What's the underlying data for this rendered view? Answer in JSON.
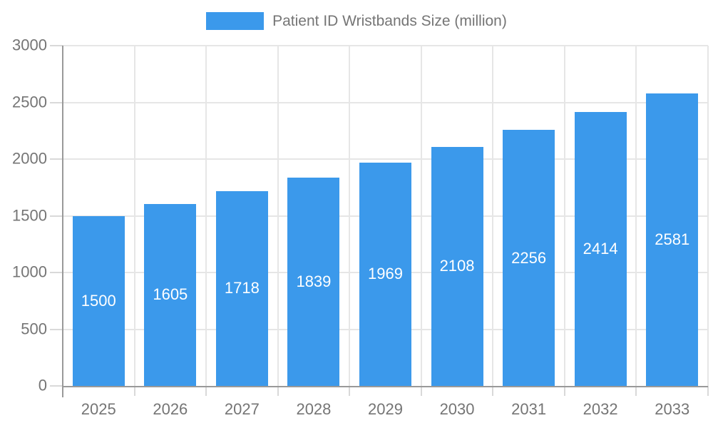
{
  "chart_data": {
    "type": "bar",
    "series_name": "Patient ID Wristbands Size (million)",
    "categories": [
      "2025",
      "2026",
      "2027",
      "2028",
      "2029",
      "2030",
      "2031",
      "2032",
      "2033"
    ],
    "values": [
      1500,
      1605,
      1718,
      1839,
      1969,
      2108,
      2256,
      2414,
      2581
    ],
    "ylim": [
      0,
      3000
    ],
    "y_ticks": [
      0,
      500,
      1000,
      1500,
      2000,
      2500,
      3000
    ],
    "grid": true,
    "legend_position": "top-center",
    "value_labels": "inside-center-white",
    "colors": {
      "bar": "#3B99EB",
      "value_label": "#FFFFFF",
      "axis_text": "#757575",
      "grid_line": "#E6E6E6",
      "axis_line": "#999999",
      "tick": "#D9D9D9",
      "background": "#FFFFFF"
    }
  }
}
